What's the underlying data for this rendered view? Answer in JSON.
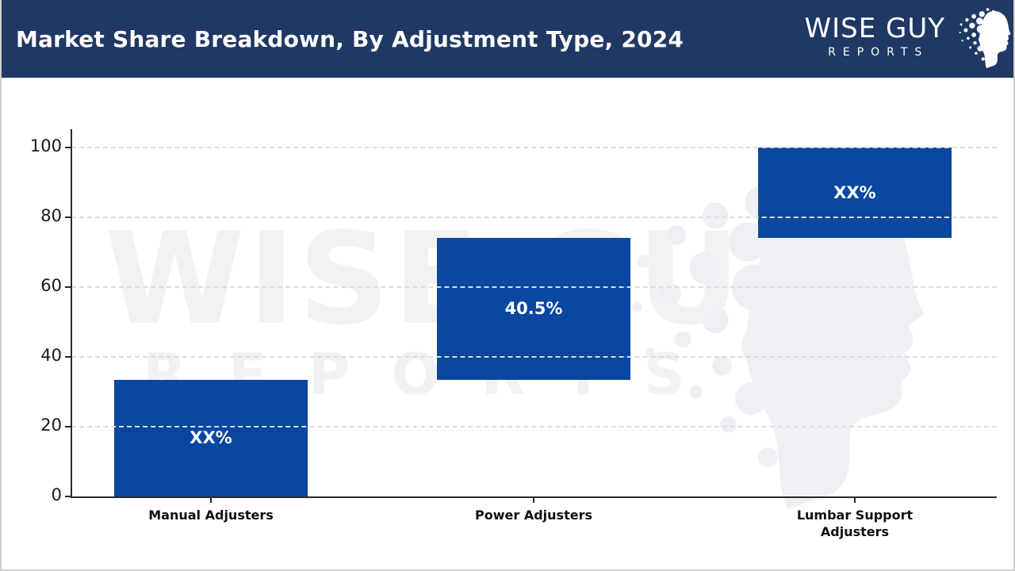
{
  "header": {
    "title": "Market Share Breakdown, By Adjustment Type, 2024",
    "logo_line1": "WISE GUY",
    "logo_line2": "REPORTS"
  },
  "watermark": {
    "line1": "WISE GUY",
    "line2": "REPORTS"
  },
  "colors": {
    "header_background": "#203864",
    "bar_blue": "#0a47a0",
    "grid_gray": "#dcdcdc",
    "bar_label": "#ffffff"
  },
  "chart_data": {
    "type": "bar",
    "subtype": "floating-waterfall",
    "title": "Market Share Breakdown, By Adjustment Type, 2024",
    "xlabel": "",
    "ylabel": "",
    "categories": [
      "Manual Adjusters",
      "Power Adjusters",
      "Lumbar Support Adjusters"
    ],
    "series": [
      {
        "name": "Market share (%)",
        "segments": [
          {
            "category": "Manual Adjusters",
            "start": 0,
            "end": 33.5,
            "label": "XX%"
          },
          {
            "category": "Power Adjusters",
            "start": 33.5,
            "end": 74,
            "label": "40.5%"
          },
          {
            "category": "Lumbar Support Adjusters",
            "start": 74,
            "end": 100,
            "label": "XX%"
          }
        ]
      }
    ],
    "ylim": [
      0,
      100
    ],
    "yticks": [
      0,
      20,
      40,
      60,
      80,
      100
    ],
    "grid": {
      "axis": "y",
      "style": "dashed"
    },
    "legend": "none",
    "bar_color": "#0a47a0",
    "bar_label_color": "#ffffff"
  }
}
